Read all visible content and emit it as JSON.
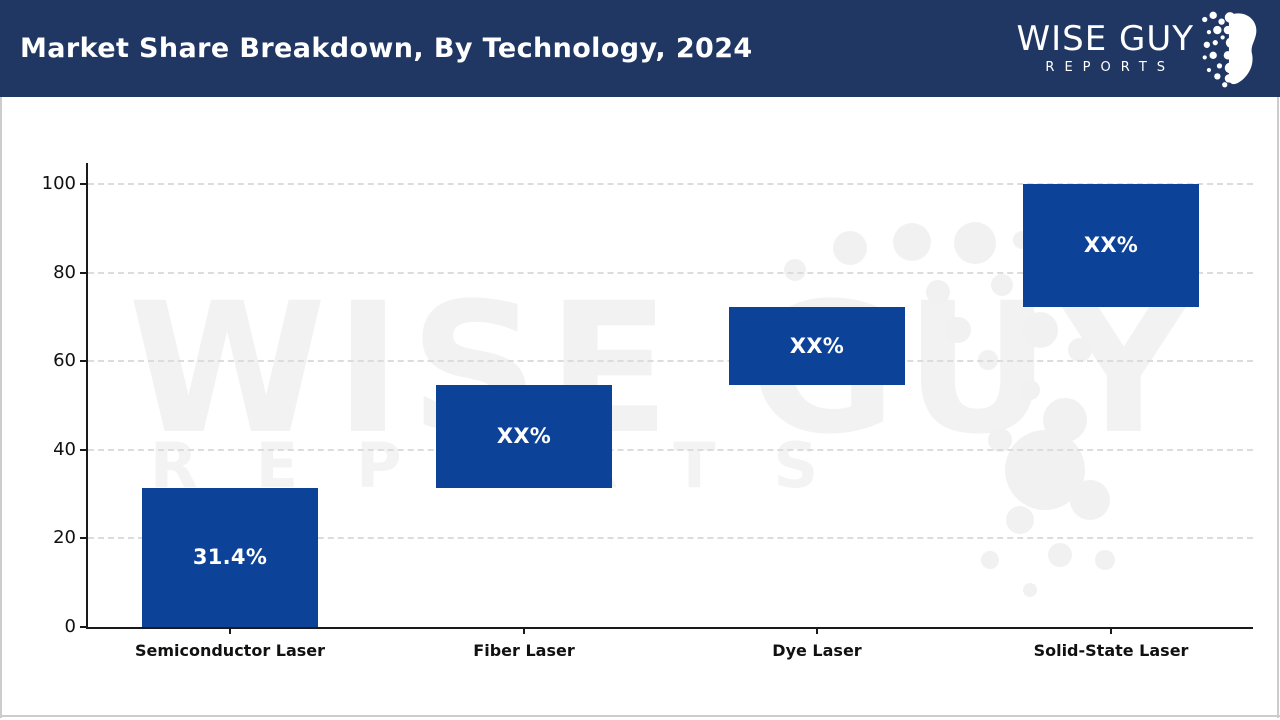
{
  "header": {
    "title": "Market Share Breakdown, By Technology, 2024",
    "logo": {
      "line1": "WISE GUY",
      "line2": "REPORTS"
    },
    "bg_color": "#203764"
  },
  "watermark": {
    "line1": "WISE GUY",
    "line2": "REPORTS"
  },
  "chart_data": {
    "type": "bar",
    "subtype": "waterfall",
    "title": "Market Share Breakdown, By Technology, 2024",
    "categories": [
      "Semiconductor Laser",
      "Fiber Laser",
      "Dye Laser",
      "Solid-State Laser"
    ],
    "segments": [
      {
        "category": "Semiconductor Laser",
        "start": 0,
        "end": 31.4,
        "label": "31.4%"
      },
      {
        "category": "Fiber Laser",
        "start": 31.4,
        "end": 54.7,
        "label": "XX%"
      },
      {
        "category": "Dye Laser",
        "start": 54.7,
        "end": 72.3,
        "label": "XX%"
      },
      {
        "category": "Solid-State Laser",
        "start": 72.3,
        "end": 100,
        "label": "XX%"
      }
    ],
    "yticks": [
      0,
      20,
      40,
      60,
      80,
      100
    ],
    "ylim": [
      0,
      104.6
    ],
    "xlabel": "",
    "ylabel": "",
    "grid": "horizontal-dashed",
    "legend": "none",
    "bar_color": "#0c4298",
    "bar_label_color": "#ffffff",
    "axis_color": "#1a1a1a",
    "grid_color": "#dcdcdc"
  }
}
